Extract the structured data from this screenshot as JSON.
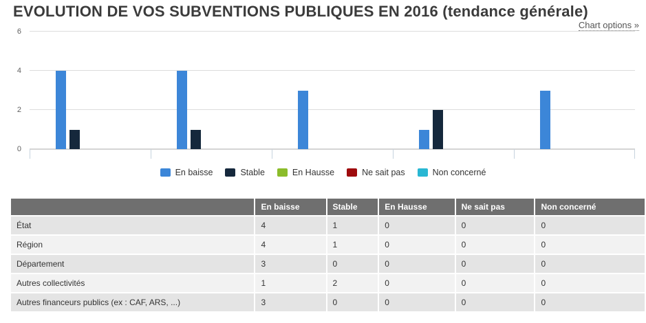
{
  "header": {
    "title": "EVOLUTION DE VOS SUBVENTIONS PUBLIQUES EN 2016 (tendance générale)",
    "chart_options_label": "Chart options »"
  },
  "chart_data": {
    "type": "bar",
    "title": "EVOLUTION DE VOS SUBVENTIONS PUBLIQUES EN 2016 (tendance générale)",
    "categories": [
      "État",
      "Région",
      "Département",
      "Autres collectivités",
      "Autres financeurs publics (ex : CAF, ARS, ...)"
    ],
    "series": [
      {
        "name": "En baisse",
        "color": "#3c86d8",
        "values": [
          4,
          4,
          3,
          1,
          3
        ]
      },
      {
        "name": "Stable",
        "color": "#15283c",
        "values": [
          1,
          1,
          0,
          2,
          0
        ]
      },
      {
        "name": "En Hausse",
        "color": "#8bbc2b",
        "values": [
          0,
          0,
          0,
          0,
          0
        ]
      },
      {
        "name": "Ne sait pas",
        "color": "#9e0b0d",
        "values": [
          0,
          0,
          0,
          0,
          0
        ]
      },
      {
        "name": "Non concerné",
        "color": "#29b7d3",
        "values": [
          0,
          0,
          0,
          0,
          0
        ]
      }
    ],
    "xlabel": "",
    "ylabel": "",
    "ylim": [
      0,
      6
    ],
    "yticks": [
      0,
      2,
      4,
      6
    ],
    "grid": true,
    "x_tick_labels_visible": false,
    "legend_position": "bottom"
  },
  "table": {
    "columns": [
      "",
      "En baisse",
      "Stable",
      "En Hausse",
      "Ne sait pas",
      "Non concerné"
    ],
    "rows": [
      {
        "label": "État",
        "values": [
          4,
          1,
          0,
          0,
          0
        ]
      },
      {
        "label": "Région",
        "values": [
          4,
          1,
          0,
          0,
          0
        ]
      },
      {
        "label": "Département",
        "values": [
          3,
          0,
          0,
          0,
          0
        ]
      },
      {
        "label": "Autres collectivités",
        "values": [
          1,
          2,
          0,
          0,
          0
        ]
      },
      {
        "label": "Autres financeurs publics (ex : CAF, ARS, ...)",
        "values": [
          3,
          0,
          0,
          0,
          0
        ]
      }
    ]
  }
}
